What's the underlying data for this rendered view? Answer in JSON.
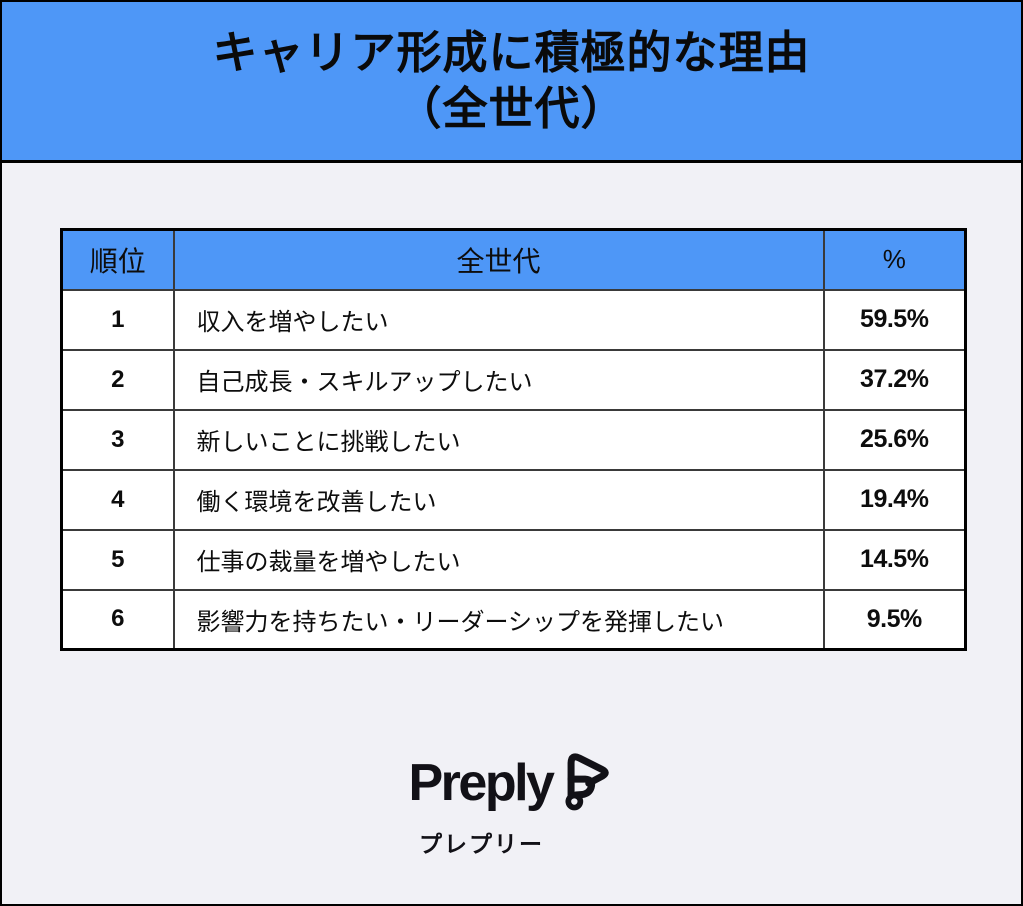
{
  "colors": {
    "accent_blue": "#4E97F7",
    "page_background": "#F1F1F6",
    "text_black": "#0A0A0A",
    "logo_black": "#121117"
  },
  "header": {
    "title_line1": "キャリア形成に積極的な理由",
    "title_line2": "（全世代）"
  },
  "table": {
    "columns": [
      {
        "key": "rank",
        "label": "順位"
      },
      {
        "key": "reason",
        "label": "全世代"
      },
      {
        "key": "percent",
        "label": "%"
      }
    ],
    "rows": [
      {
        "rank": "1",
        "reason": "収入を増やしたい",
        "percent": "59.5%"
      },
      {
        "rank": "2",
        "reason": "自己成長・スキルアップしたい",
        "percent": "37.2%"
      },
      {
        "rank": "3",
        "reason": "新しいことに挑戦したい",
        "percent": "25.6%"
      },
      {
        "rank": "4",
        "reason": "働く環境を改善したい",
        "percent": "19.4%"
      },
      {
        "rank": "5",
        "reason": "仕事の裁量を増やしたい",
        "percent": "14.5%"
      },
      {
        "rank": "6",
        "reason": "影響力を持ちたい・リーダーシップを発揮したい",
        "percent": "9.5%"
      }
    ]
  },
  "footer": {
    "brand": "Preply",
    "brand_ja": "プレプリー"
  },
  "chart_data": {
    "type": "table",
    "title": "キャリア形成に積極的な理由（全世代）",
    "columns": [
      "順位",
      "全世代",
      "%"
    ],
    "categories": [
      "収入を増やしたい",
      "自己成長・スキルアップしたい",
      "新しいことに挑戦したい",
      "働く環境を改善したい",
      "仕事の裁量を増やしたい",
      "影響力を持ちたい・リーダーシップを発揮したい"
    ],
    "values": [
      59.5,
      37.2,
      25.6,
      19.4,
      14.5,
      9.5
    ],
    "ranks": [
      1,
      2,
      3,
      4,
      5,
      6
    ],
    "legend_position": "none",
    "grid": "table-borders"
  }
}
